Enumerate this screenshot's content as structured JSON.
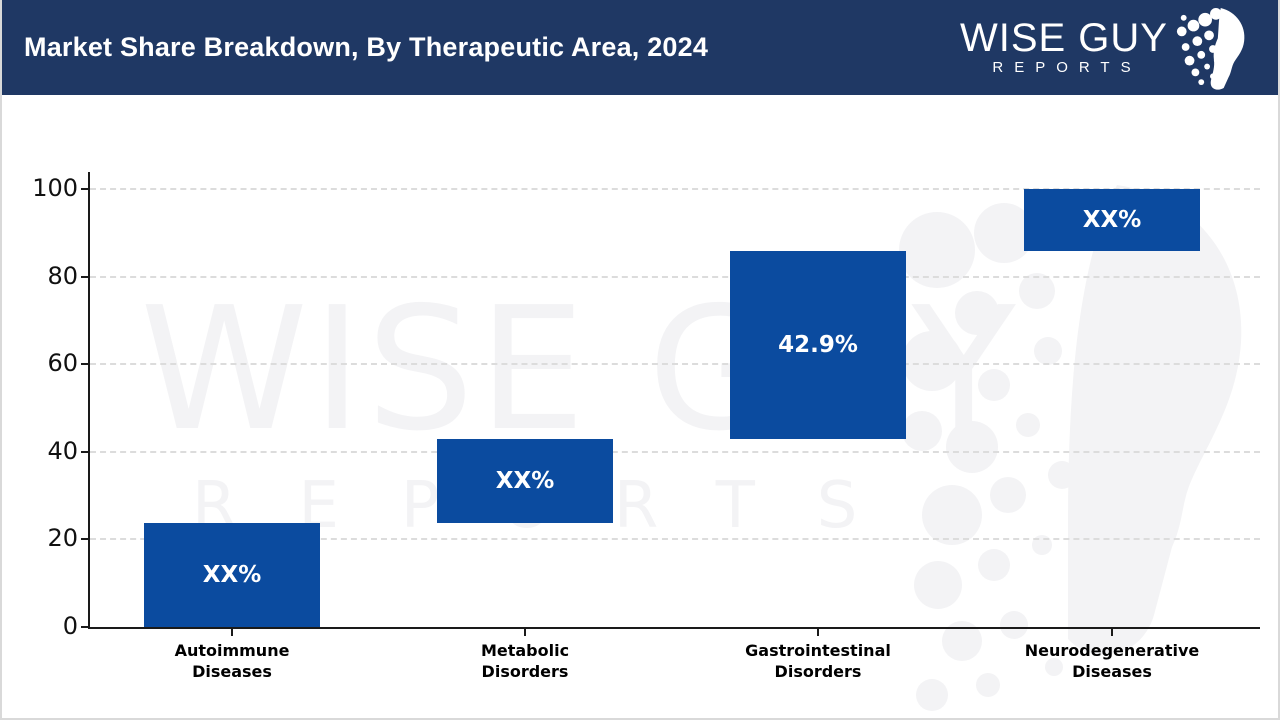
{
  "header": {
    "title": "Market Share Breakdown, By Therapeutic Area, 2024",
    "logo": {
      "line1": "WISE GUY",
      "line2": "REPORTS"
    }
  },
  "watermark": {
    "line1": "WISE GUY",
    "line2": "REPORTS"
  },
  "colors": {
    "header_bg": "#1f3864",
    "bar": "#0b4b9f",
    "grid": "#dcdcdc",
    "axis": "#1a1a1a",
    "watermark": "#f3f3f5",
    "title_text": "#ffffff"
  },
  "chart_data": {
    "type": "bar",
    "subtype": "waterfall",
    "title": "Market Share Breakdown, By Therapeutic Area, 2024",
    "categories": [
      "Autoimmune Diseases",
      "Metabolic Disorders",
      "Gastrointestinal Disorders",
      "Neurodegenerative Diseases"
    ],
    "category_lines": [
      [
        "Autoimmune",
        "Diseases"
      ],
      [
        "Metabolic",
        "Disorders"
      ],
      [
        "Gastrointestinal",
        "Disorders"
      ],
      [
        "Neurodegenerative",
        "Diseases"
      ]
    ],
    "bars": [
      {
        "category": "Autoimmune Diseases",
        "start": 0,
        "end": 23.8,
        "value_label": "XX%"
      },
      {
        "category": "Metabolic Disorders",
        "start": 23.8,
        "end": 42.9,
        "value_label": "XX%"
      },
      {
        "category": "Gastrointestinal Disorders",
        "start": 42.9,
        "end": 85.8,
        "value_label": "42.9%"
      },
      {
        "category": "Neurodegenerative Diseases",
        "start": 85.8,
        "end": 100,
        "value_label": "XX%"
      }
    ],
    "ylim": [
      0,
      100
    ],
    "yticks": [
      0,
      20,
      40,
      60,
      80,
      100
    ],
    "grid": "horizontal-dashed",
    "legend": null,
    "bar_color": "#0b4b9f"
  }
}
